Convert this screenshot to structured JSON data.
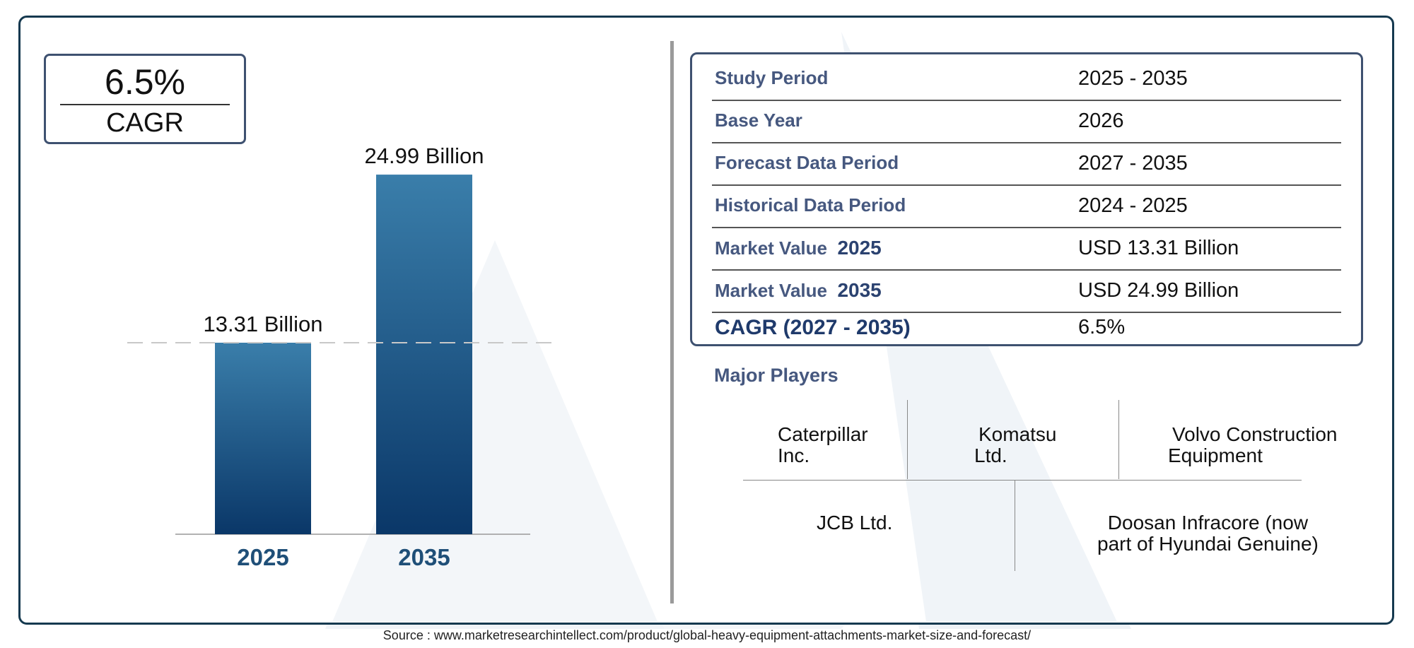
{
  "cagr_box": {
    "value": "6.5%",
    "label": "CAGR"
  },
  "chart_data": {
    "type": "bar",
    "categories": [
      "2025",
      "2035"
    ],
    "values": [
      13.31,
      24.99
    ],
    "data_labels": [
      "13.31 Billion",
      "24.99 Billion"
    ],
    "ylim": [
      0,
      27.5
    ],
    "reference_line_at": 13.31,
    "grid": false,
    "colors": {
      "bar_top": "#3a7eaa",
      "bar_bottom": "#0a3768",
      "category_text": "#1f4f78"
    }
  },
  "study_table": [
    {
      "label": "Study Period",
      "value": "2025 - 2035"
    },
    {
      "label": "Base Year",
      "value": "2026"
    },
    {
      "label": "Forecast Data Period",
      "value": "2027 - 2035"
    },
    {
      "label": "Historical Data Period",
      "value": "2024 - 2025"
    },
    {
      "label": "Market Value",
      "year": "2025",
      "value": "USD 13.31 Billion"
    },
    {
      "label": "Market Value",
      "year": "2035",
      "value": "USD 24.99 Billion"
    },
    {
      "label": "CAGR (2027 - 2035)",
      "value": "6.5%"
    }
  ],
  "major_players": {
    "title": "Major Players",
    "row1": [
      {
        "line1": "Caterpillar",
        "line2": "Inc."
      },
      {
        "line1": "Komatsu",
        "line2": "Ltd."
      },
      {
        "line1": "Volvo Construction",
        "line2": "Equipment"
      }
    ],
    "row2": [
      {
        "line1": "JCB Ltd.",
        "line2": ""
      },
      {
        "line1": "Doosan Infracore (now",
        "line2": "part of Hyundai Genuine)"
      }
    ]
  },
  "source": "Source : www.marketresearchintellect.com/product/global-heavy-equipment-attachments-market-size-and-forecast/"
}
